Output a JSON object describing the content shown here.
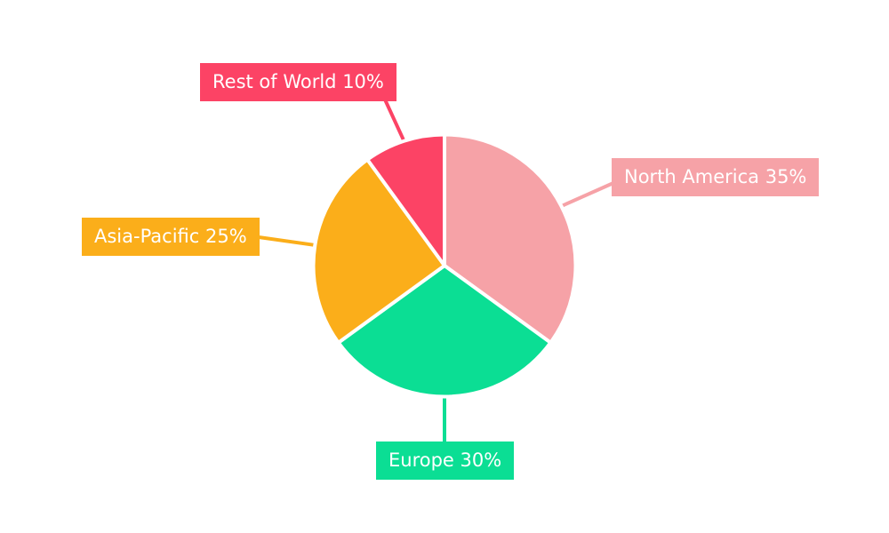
{
  "page": {
    "background": "#ffffff"
  },
  "chart_data": {
    "type": "pie",
    "title": "",
    "unit": "%",
    "categories": [
      "North America",
      "Europe",
      "Asia-Pacific",
      "Rest of World"
    ],
    "values": [
      35,
      30,
      25,
      10
    ],
    "slices": [
      {
        "label": "North America",
        "value": 35,
        "display": "North America 35%",
        "color": "#F6A2A7"
      },
      {
        "label": "Europe",
        "value": 30,
        "display": "Europe 30%",
        "color": "#0BDE94"
      },
      {
        "label": "Asia-Pacific",
        "value": 25,
        "display": "Asia-Pacific 25%",
        "color": "#FBAE1A"
      },
      {
        "label": "Rest of World",
        "value": 10,
        "display": "Rest of World 10%",
        "color": "#FC4365"
      }
    ],
    "start_angle": "12 o'clock",
    "direction": "clockwise",
    "slice_gap_color": "#ffffff",
    "label_text_color": "#ffffff",
    "legend_position": "none",
    "annotation_style": "colored callout boxes with leader lines"
  }
}
